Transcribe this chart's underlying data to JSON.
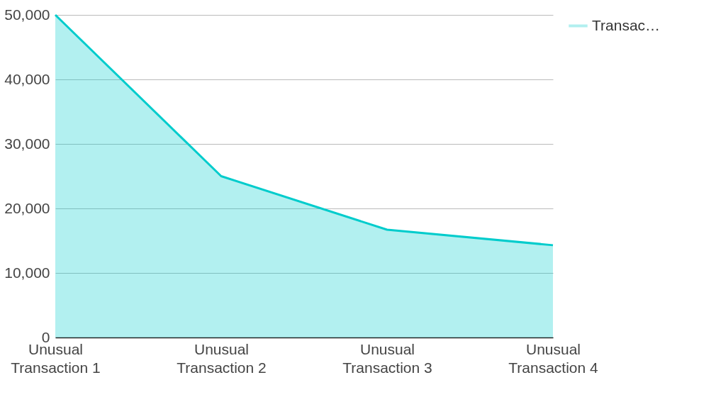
{
  "chart_data": {
    "type": "area",
    "categories": [
      "Unusual Transaction 1",
      "Unusual Transaction 2",
      "Unusual Transaction 3",
      "Unusual Transaction 4"
    ],
    "series": [
      {
        "name": "Transac…",
        "color": "#00cccc",
        "values": [
          50000,
          25000,
          16700,
          14300
        ]
      }
    ],
    "ylim": [
      0,
      50000
    ],
    "yticks": [
      {
        "value": 0,
        "label": "0"
      },
      {
        "value": 10000,
        "label": "10,000"
      },
      {
        "value": 20000,
        "label": "20,000"
      },
      {
        "value": 30000,
        "label": "30,000"
      },
      {
        "value": 40000,
        "label": "40,000"
      },
      {
        "value": 50000,
        "label": "50,000"
      }
    ],
    "grid": true,
    "legend": "top right"
  }
}
